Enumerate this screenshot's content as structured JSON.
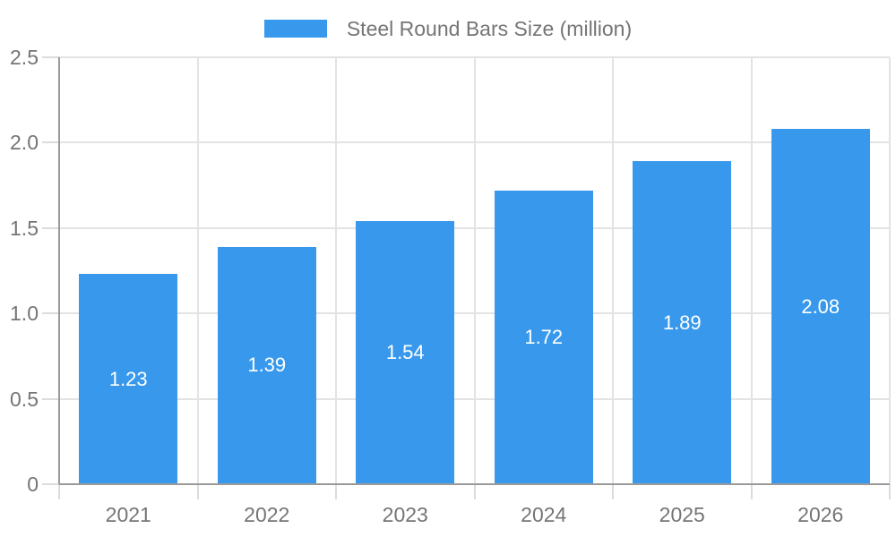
{
  "legend": {
    "label": "Steel Round Bars Size (million)"
  },
  "colors": {
    "bar": "#3899EC",
    "grid": "#E3E3E3",
    "tick": "#DCDCDC",
    "axis": "#9A9A9A",
    "text": "#757575",
    "bar_label": "#FFFFFF"
  },
  "chart_data": {
    "type": "bar",
    "title": "Steel Round Bars Size (million)",
    "categories": [
      "2021",
      "2022",
      "2023",
      "2024",
      "2025",
      "2026"
    ],
    "values": [
      1.23,
      1.39,
      1.54,
      1.72,
      1.89,
      2.08
    ],
    "series": [
      {
        "name": "Steel Round Bars Size (million)",
        "values": [
          1.23,
          1.39,
          1.54,
          1.72,
          1.89,
          2.08
        ]
      }
    ],
    "value_labels": [
      "1.23",
      "1.39",
      "1.54",
      "1.72",
      "1.89",
      "2.08"
    ],
    "xlabel": "",
    "ylabel": "",
    "ylim": [
      0,
      2.5
    ],
    "ytick_labels": [
      "0",
      "0.5",
      "1.0",
      "1.5",
      "2.0",
      "2.5"
    ],
    "ytick_values": [
      0,
      0.5,
      1.0,
      1.5,
      2.0,
      2.5
    ],
    "grid": true,
    "legend_position": "top",
    "value_label_position": "inside-center"
  }
}
